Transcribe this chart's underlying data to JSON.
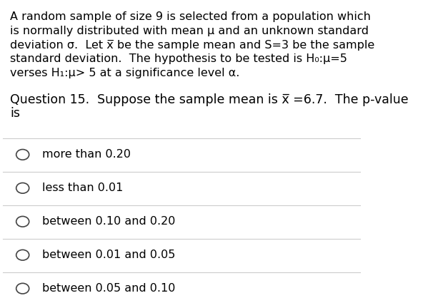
{
  "bg_color": "#ffffff",
  "text_color": "#000000",
  "divider_color": "#cccccc",
  "paragraph1_lines": [
    "A random sample of size 9 is selected from a population which",
    "is normally distributed with mean μ and an unknown standard",
    "deviation σ.  Let x̅ be the sample mean and S=3 be the sample",
    "standard deviation.  The hypothesis to be tested is H₀:μ=5",
    "verses H₁:μ> 5 at a significance level α."
  ],
  "paragraph2_lines": [
    "Question 15.  Suppose the sample mean is x̅ =6.7.  The p-value",
    "is"
  ],
  "options": [
    "more than 0.20",
    "less than 0.01",
    "between 0.10 and 0.20",
    "between 0.01 and 0.05",
    "between 0.05 and 0.10"
  ],
  "font_size_para": 11.5,
  "font_size_question": 12.5,
  "font_size_options": 11.5
}
